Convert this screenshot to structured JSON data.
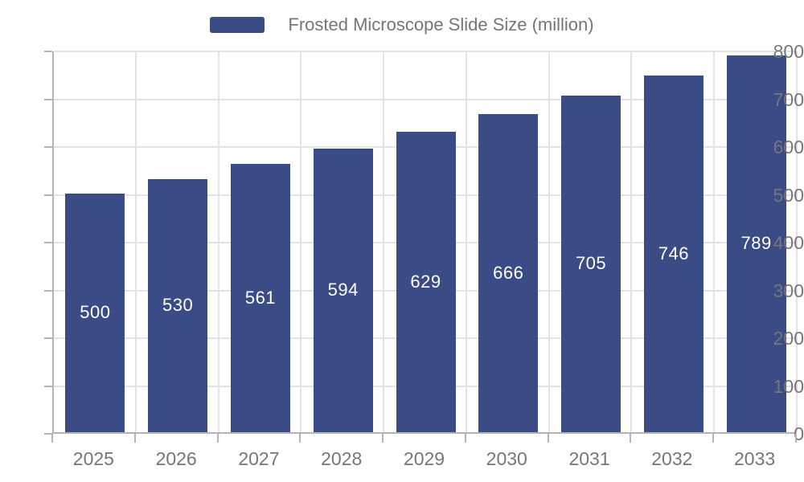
{
  "legend": {
    "label": "Frosted Microscope Slide Size (million)"
  },
  "chart_data": {
    "type": "bar",
    "title": "",
    "xlabel": "",
    "ylabel": "",
    "series_name": "Frosted Microscope Slide Size (million)",
    "categories": [
      "2025",
      "2026",
      "2027",
      "2028",
      "2029",
      "2030",
      "2031",
      "2032",
      "2033"
    ],
    "values": [
      500,
      530,
      561,
      594,
      629,
      666,
      705,
      746,
      789
    ],
    "ylim": [
      0,
      800
    ],
    "yticks": [
      0,
      100,
      200,
      300,
      400,
      500,
      600,
      700,
      800
    ],
    "grid": true,
    "legend_position": "top-center",
    "value_labels_position": "inside-center"
  },
  "colors": {
    "bar": "#3A4B85",
    "bar_value_label": "#FFFFFF",
    "gridline": "#E3E3E6",
    "axis_line": "#B3B3BA",
    "tick": "#B3B3BA",
    "axis_text": "#76767B",
    "legend_text": "#75757A",
    "background": "#FFFFFF"
  }
}
